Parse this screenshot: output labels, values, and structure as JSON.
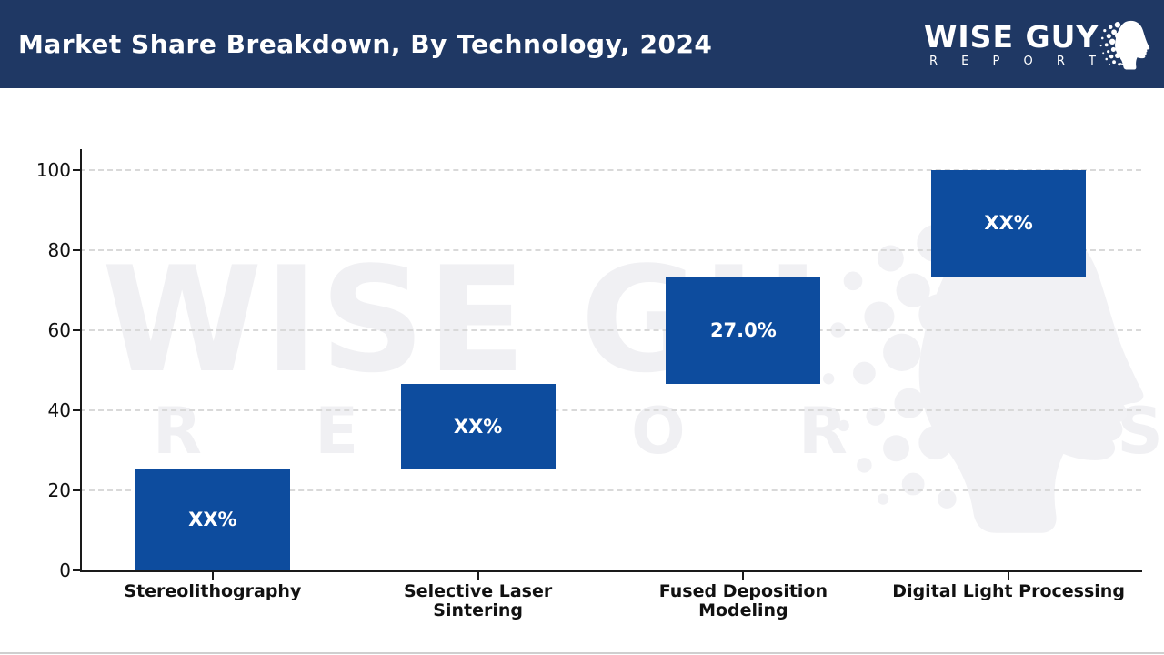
{
  "header": {
    "title": "Market Share Breakdown, By Technology, 2024",
    "bg_color": "#1f3864",
    "logo": {
      "line1": "WISE GUY",
      "line2": "R E P O R T S"
    }
  },
  "watermark": {
    "line1": "WISE GU",
    "line2": "R E P O R T S"
  },
  "chart_data": {
    "type": "bar",
    "subtype": "waterfall",
    "title": "Market Share Breakdown, By Technology, 2024",
    "categories": [
      "Stereolithography",
      "Selective Laser Sintering",
      "Fused Deposition Modeling",
      "Digital Light Processing"
    ],
    "segments": [
      {
        "category": "Stereolithography",
        "start": 0,
        "end": 25.5,
        "label": "XX%"
      },
      {
        "category": "Selective Laser Sintering",
        "start": 25.5,
        "end": 46.5,
        "label": "XX%"
      },
      {
        "category": "Fused Deposition Modeling",
        "start": 46.5,
        "end": 73.5,
        "label": "27.0%"
      },
      {
        "category": "Digital Light Processing",
        "start": 73.5,
        "end": 100,
        "label": "XX%"
      }
    ],
    "ylim": [
      0,
      100
    ],
    "yticks": [
      0,
      20,
      40,
      60,
      80,
      100
    ],
    "grid": "dashed-horizontal",
    "legend": "none",
    "bar_color": "#0d4c9e",
    "bar_label_color": "#ffffff",
    "axis_color": "#1a1a1a",
    "grid_color": "#d9d9d9"
  }
}
